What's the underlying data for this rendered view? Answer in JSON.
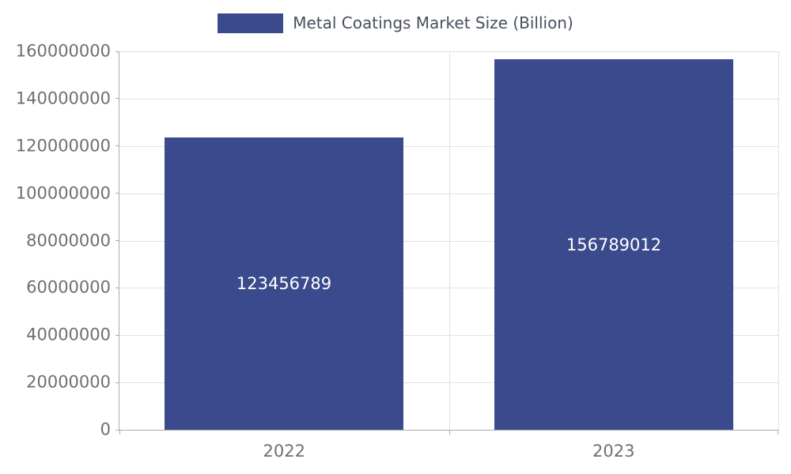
{
  "legend": {
    "label": "Metal Coatings Market Size (Billion)"
  },
  "chart_data": {
    "type": "bar",
    "title": "Metal Coatings Market Size (Billion)",
    "categories": [
      "2022",
      "2023"
    ],
    "series": [
      {
        "name": "Metal Coatings Market Size (Billion)",
        "values": [
          123456789,
          156789012
        ]
      }
    ],
    "data_labels": [
      "123456789",
      "156789012"
    ],
    "xlabel": "",
    "ylabel": "",
    "ylim": [
      0,
      160000000
    ],
    "yticks": [
      0,
      20000000,
      40000000,
      60000000,
      80000000,
      100000000,
      120000000,
      140000000,
      160000000
    ],
    "grid": true,
    "legend_position": "top-center",
    "bar_color": "#3b4a8c",
    "data_label_color": "#ffffff",
    "axis_label_color": "#6f6f6f"
  }
}
